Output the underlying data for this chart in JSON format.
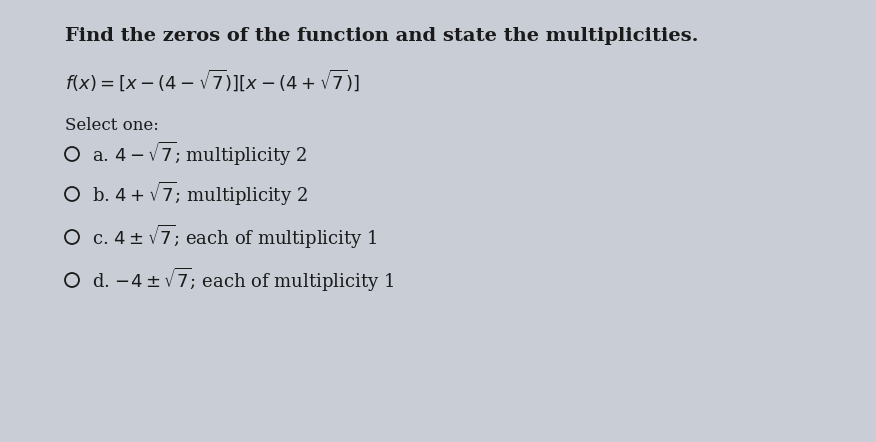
{
  "title": "Find the zeros of the function and state the multiplicities.",
  "function_line": "$f(x) = [x - (4 - \\sqrt{7})][x - (4 + \\sqrt{7})]$",
  "select_one": "Select one:",
  "options": [
    "a. $4 - \\sqrt{7}$; multiplicity 2",
    "b. $4 + \\sqrt{7}$; multiplicity 2",
    "c. $4 \\pm \\sqrt{7}$; each of multiplicity 1",
    "d. $-4 \\pm \\sqrt{7}$; each of multiplicity 1"
  ],
  "bg_color": "#c8cdd6",
  "text_color": "#1a1a1a",
  "title_fontsize": 14,
  "func_fontsize": 13,
  "select_fontsize": 12,
  "option_fontsize": 13
}
